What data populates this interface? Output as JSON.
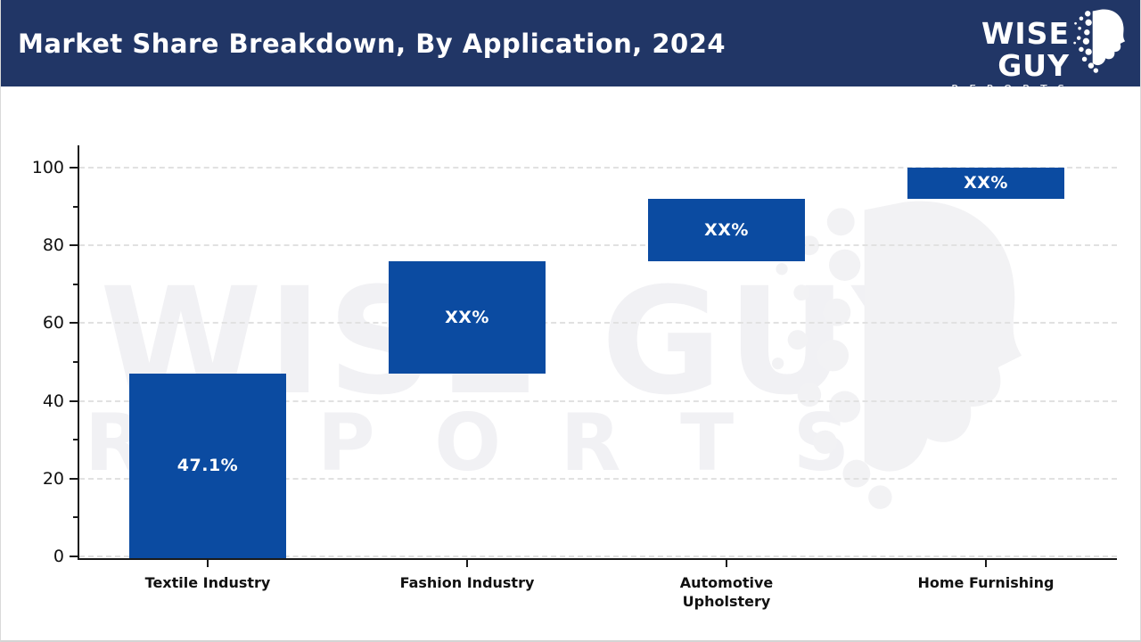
{
  "header": {
    "title": "Market Share Breakdown, By Application, 2024",
    "logo_line1": "WISE GUY",
    "logo_line2": "R E P O R T S"
  },
  "watermark": {
    "line1": "WISE GUY",
    "line2": "R E P O R T S"
  },
  "chart_data": {
    "type": "bar",
    "subtype": "waterfall",
    "title": "Market Share Breakdown, By Application, 2024",
    "categories": [
      "Textile Industry",
      "Fashion Industry",
      "Automotive\nUpholstery",
      "Home Furnishing"
    ],
    "segments": [
      {
        "category": "Textile Industry",
        "start": 0,
        "end": 47.1,
        "label": "47.1%"
      },
      {
        "category": "Fashion Industry",
        "start": 47.1,
        "end": 76,
        "label": "XX%"
      },
      {
        "category": "Automotive Upholstery",
        "start": 76,
        "end": 92,
        "label": "XX%"
      },
      {
        "category": "Home Furnishing",
        "start": 92,
        "end": 100,
        "label": "XX%"
      }
    ],
    "yticks": [
      0,
      20,
      40,
      60,
      80,
      100
    ],
    "y_minor_ticks": [
      10,
      30,
      50,
      70,
      90
    ],
    "ylim": [
      0,
      105
    ],
    "xlabel": "",
    "ylabel": "",
    "grid": "horizontal-dashed",
    "legend": "none",
    "bar_color": "#0b4ba1",
    "value_label_color": "#ffffff"
  },
  "colors": {
    "header_bg": "#213666",
    "bar": "#0b4ba1",
    "grid": "#e1e1e1",
    "axis": "#1a1a1a",
    "watermark": "#f1f1f4"
  }
}
